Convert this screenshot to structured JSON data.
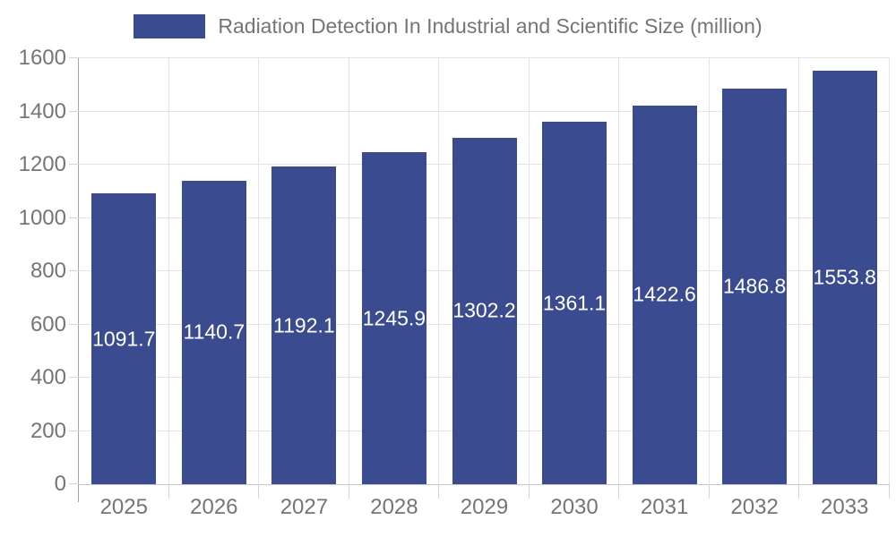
{
  "legend": {
    "label": "Radiation Detection In Industrial and Scientific Size (million)",
    "swatch_color": "#3A4B8F"
  },
  "chart_data": {
    "type": "bar",
    "title": "Radiation Detection In Industrial and Scientific Size (million)",
    "categories": [
      "2025",
      "2026",
      "2027",
      "2028",
      "2029",
      "2030",
      "2031",
      "2032",
      "2033"
    ],
    "values": [
      1091.7,
      1140.7,
      1192.1,
      1245.9,
      1302.2,
      1361.1,
      1422.6,
      1486.8,
      1553.8
    ],
    "series": [
      {
        "name": "Radiation Detection In Industrial and Scientific Size (million)",
        "values": [
          1091.7,
          1140.7,
          1192.1,
          1245.9,
          1302.2,
          1361.1,
          1422.6,
          1486.8,
          1553.8
        ]
      }
    ],
    "xlabel": "",
    "ylabel": "",
    "ylim": [
      0,
      1600
    ],
    "yticks": [
      0,
      200,
      400,
      600,
      800,
      1000,
      1200,
      1400,
      1600
    ],
    "grid": true,
    "legend_position": "top",
    "value_labels": "inside-middle",
    "colors": {
      "bar": "#3A4B8F",
      "value_label": "#ffffff",
      "axis_text": "#757575",
      "axis_line": "#a3a3a3",
      "tick": "#d4d4d4",
      "gridline": "#e4e4e4",
      "baseline": "#c8c8cd",
      "background": "#ffffff"
    }
  }
}
